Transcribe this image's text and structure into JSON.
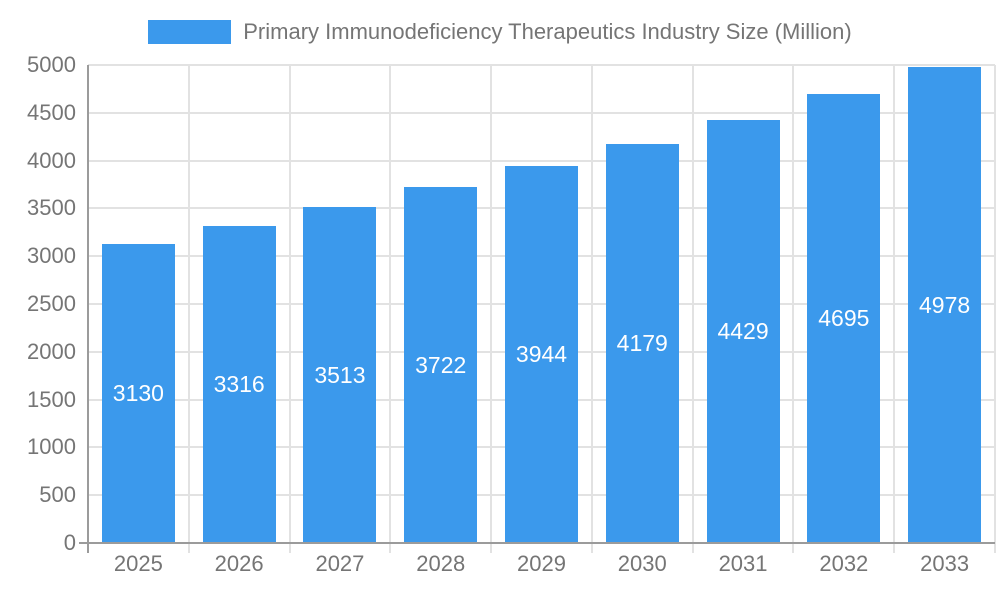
{
  "chart_data": {
    "type": "bar",
    "title": "Primary Immunodeficiency Therapeutics Industry Size (Million)",
    "categories": [
      "2025",
      "2026",
      "2027",
      "2028",
      "2029",
      "2030",
      "2031",
      "2032",
      "2033"
    ],
    "values": [
      3130,
      3316,
      3513,
      3722,
      3944,
      4179,
      4429,
      4695,
      4978
    ],
    "xlabel": "",
    "ylabel": "",
    "ylim": [
      0,
      5000
    ],
    "ytick_step": 500,
    "grid": true,
    "legend_position": "top",
    "colors": {
      "bar": "#3B99EC",
      "bar_label": "#FFFFFF",
      "axis_text": "#757575",
      "gridline": "#E2E2E2",
      "axis_line": "#9B9B9B",
      "background": "#FFFFFF"
    }
  }
}
